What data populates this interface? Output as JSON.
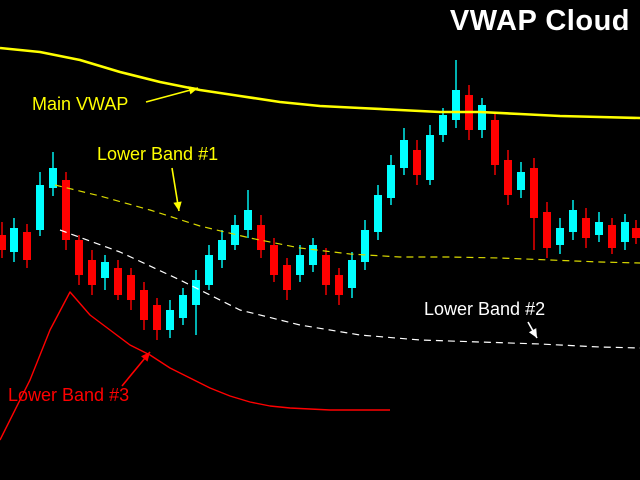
{
  "title": "VWAP Cloud",
  "colors": {
    "background": "#000000",
    "title_text": "#ffffff",
    "bullish_candle": "#00ffff",
    "bearish_candle": "#ff0000",
    "main_vwap": "#ffff00",
    "lower_band_1": "#d9d900",
    "lower_band_2": "#ffffff",
    "lower_band_3": "#ff0000"
  },
  "chart_data": {
    "type": "candlestick",
    "title": "VWAP Cloud",
    "grid": false,
    "axes_visible": false,
    "legend_position": "inline-annotations",
    "value_units": "relative price units (chart shows no axis scales or tick labels); x is horizontal bar position",
    "ylim": [
      0,
      480
    ],
    "candles_format": [
      "x",
      "open",
      "high",
      "low",
      "close"
    ],
    "candles": [
      [
        2,
        245,
        258,
        222,
        230
      ],
      [
        14,
        228,
        262,
        218,
        252
      ],
      [
        27,
        248,
        256,
        212,
        220
      ],
      [
        40,
        250,
        308,
        244,
        295
      ],
      [
        53,
        292,
        328,
        284,
        312
      ],
      [
        66,
        300,
        308,
        230,
        240
      ],
      [
        79,
        240,
        245,
        195,
        205
      ],
      [
        92,
        220,
        230,
        185,
        195
      ],
      [
        105,
        202,
        225,
        190,
        218
      ],
      [
        118,
        212,
        220,
        180,
        185
      ],
      [
        131,
        205,
        212,
        170,
        180
      ],
      [
        144,
        190,
        198,
        150,
        160
      ],
      [
        157,
        175,
        182,
        140,
        150
      ],
      [
        170,
        150,
        180,
        142,
        170
      ],
      [
        183,
        162,
        192,
        155,
        185
      ],
      [
        196,
        175,
        210,
        145,
        200
      ],
      [
        209,
        195,
        235,
        190,
        225
      ],
      [
        222,
        220,
        250,
        212,
        240
      ],
      [
        235,
        235,
        265,
        230,
        255
      ],
      [
        248,
        250,
        290,
        242,
        270
      ],
      [
        261,
        255,
        265,
        222,
        230
      ],
      [
        274,
        235,
        242,
        198,
        205
      ],
      [
        287,
        215,
        222,
        180,
        190
      ],
      [
        300,
        205,
        235,
        198,
        225
      ],
      [
        313,
        215,
        242,
        208,
        235
      ],
      [
        326,
        225,
        232,
        185,
        195
      ],
      [
        339,
        205,
        212,
        175,
        185
      ],
      [
        352,
        192,
        228,
        182,
        220
      ],
      [
        365,
        218,
        260,
        210,
        250
      ],
      [
        378,
        248,
        295,
        240,
        285
      ],
      [
        391,
        282,
        325,
        275,
        315
      ],
      [
        404,
        312,
        352,
        305,
        340
      ],
      [
        417,
        330,
        340,
        295,
        305
      ],
      [
        430,
        300,
        355,
        295,
        345
      ],
      [
        443,
        345,
        372,
        338,
        365
      ],
      [
        456,
        360,
        420,
        352,
        390
      ],
      [
        469,
        385,
        395,
        340,
        350
      ],
      [
        482,
        350,
        382,
        342,
        375
      ],
      [
        495,
        360,
        368,
        305,
        315
      ],
      [
        508,
        320,
        330,
        275,
        285
      ],
      [
        521,
        290,
        318,
        282,
        308
      ],
      [
        534,
        312,
        322,
        230,
        262
      ],
      [
        547,
        268,
        278,
        222,
        232
      ],
      [
        560,
        235,
        262,
        226,
        252
      ],
      [
        573,
        248,
        280,
        240,
        270
      ],
      [
        586,
        262,
        272,
        232,
        242
      ],
      [
        599,
        245,
        268,
        238,
        258
      ],
      [
        612,
        255,
        262,
        226,
        232
      ],
      [
        625,
        238,
        266,
        230,
        258
      ],
      [
        636,
        252,
        260,
        236,
        242
      ]
    ],
    "overlays": [
      {
        "name": "Main VWAP",
        "color": "#ffff00",
        "style": "solid",
        "width": 2.6,
        "points": [
          [
            0,
            432
          ],
          [
            40,
            428
          ],
          [
            80,
            420
          ],
          [
            120,
            408
          ],
          [
            160,
            398
          ],
          [
            200,
            390
          ],
          [
            240,
            384
          ],
          [
            280,
            378
          ],
          [
            320,
            374
          ],
          [
            360,
            372
          ],
          [
            400,
            370
          ],
          [
            440,
            368
          ],
          [
            480,
            368
          ],
          [
            520,
            366
          ],
          [
            560,
            364
          ],
          [
            600,
            363
          ],
          [
            640,
            362
          ]
        ]
      },
      {
        "name": "Lower Band #1",
        "color": "#d9d900",
        "style": "dashed",
        "width": 1.2,
        "points": [
          [
            55,
            295
          ],
          [
            100,
            284
          ],
          [
            150,
            270
          ],
          [
            200,
            254
          ],
          [
            250,
            242
          ],
          [
            300,
            232
          ],
          [
            350,
            226
          ],
          [
            400,
            223
          ],
          [
            450,
            223
          ],
          [
            500,
            222
          ],
          [
            550,
            220
          ],
          [
            600,
            218
          ],
          [
            640,
            217
          ]
        ]
      },
      {
        "name": "Lower Band #2",
        "color": "#ffffff",
        "style": "dashed",
        "width": 1.2,
        "points": [
          [
            60,
            250
          ],
          [
            120,
            228
          ],
          [
            180,
            200
          ],
          [
            240,
            170
          ],
          [
            300,
            155
          ],
          [
            360,
            145
          ],
          [
            420,
            140
          ],
          [
            480,
            138
          ],
          [
            540,
            136
          ],
          [
            600,
            133
          ],
          [
            640,
            132
          ]
        ]
      },
      {
        "name": "Lower Band #3",
        "color": "#ff0000",
        "style": "solid",
        "width": 1.4,
        "points": [
          [
            0,
            40
          ],
          [
            30,
            100
          ],
          [
            50,
            150
          ],
          [
            70,
            188
          ],
          [
            90,
            165
          ],
          [
            110,
            150
          ],
          [
            130,
            135
          ],
          [
            150,
            125
          ],
          [
            170,
            112
          ],
          [
            190,
            102
          ],
          [
            210,
            92
          ],
          [
            230,
            84
          ],
          [
            250,
            78
          ],
          [
            270,
            74
          ],
          [
            290,
            72
          ],
          [
            310,
            71
          ],
          [
            330,
            70
          ],
          [
            350,
            70
          ],
          [
            375,
            70
          ],
          [
            390,
            70
          ]
        ]
      }
    ],
    "annotations": [
      {
        "text": "Main VWAP",
        "color": "#ffff00",
        "arrow_from": [
          146,
          102
        ],
        "arrow_to": [
          198,
          88
        ]
      },
      {
        "text": "Lower Band #1",
        "color": "#ffff00",
        "arrow_from": [
          172,
          168
        ],
        "arrow_to": [
          179,
          211
        ]
      },
      {
        "text": "Lower Band #2",
        "color": "#ffffff",
        "arrow_from": [
          528,
          322
        ],
        "arrow_to": [
          537,
          338
        ]
      },
      {
        "text": "Lower Band #3",
        "color": "#ff0000",
        "arrow_from": [
          122,
          386
        ],
        "arrow_to": [
          150,
          352
        ]
      }
    ]
  }
}
